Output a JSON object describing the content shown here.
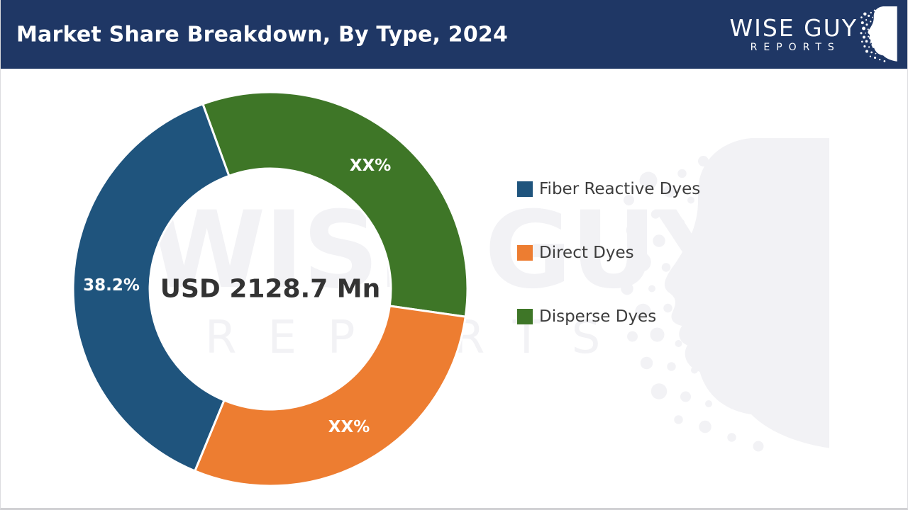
{
  "header": {
    "title": "Market Share Breakdown, By Type, 2024",
    "logo": {
      "wordmark": "WISE GUY",
      "subtext": "REPORTS"
    }
  },
  "watermark": {
    "wordmark": "WISE GUY",
    "subtext": "REPORTS"
  },
  "chart_data": {
    "type": "pie",
    "subtype": "donut",
    "title": "Market Share Breakdown, By Type, 2024",
    "center_label": "USD 2128.7 Mn",
    "legend_position": "right",
    "start_angle_deg": -20,
    "inner_radius_frac": 0.61,
    "segments": [
      {
        "label": "Fiber Reactive Dyes",
        "display_value": "38.2%",
        "share_pct": 38.2,
        "color": "#1f547d"
      },
      {
        "label": "Direct Dyes",
        "display_value": "XX%",
        "share_pct": 29.0,
        "color": "#ed7d31"
      },
      {
        "label": "Disperse Dyes",
        "display_value": "XX%",
        "share_pct": 32.8,
        "color": "#3e7627"
      }
    ],
    "colors": {
      "header_bg": "#1f3765",
      "center_text": "#333333",
      "legend_text": "#3d3d3d",
      "watermark": "#f2f2f5",
      "segment_divider": "#ffffff"
    }
  }
}
